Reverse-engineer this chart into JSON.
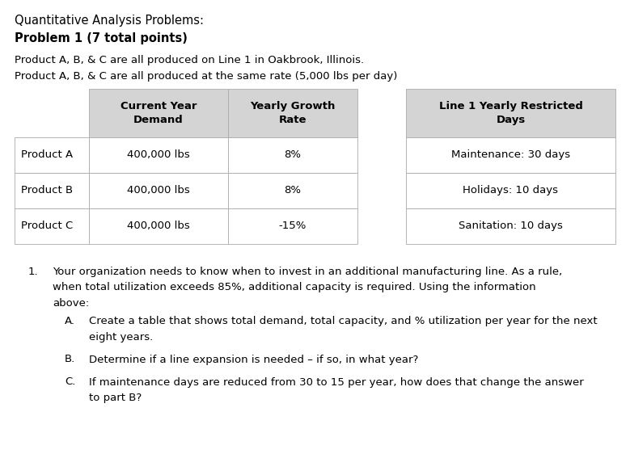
{
  "title_line1": "Quantitative Analysis Problems:",
  "title_line2": "Problem 1 (7 total points)",
  "intro_line1": "Product A, B, & C are all produced on Line 1 in Oakbrook, Illinois.",
  "intro_line2": "Product A, B, & C are all produced at the same rate (5,000 lbs per day)",
  "table_rows": [
    [
      "Product A",
      "400,000 lbs",
      "8%",
      "Maintenance: 30 days"
    ],
    [
      "Product B",
      "400,000 lbs",
      "8%",
      "Holidays: 10 days"
    ],
    [
      "Product C",
      "400,000 lbs",
      "-15%",
      "Sanitation: 10 days"
    ]
  ],
  "header_bg": "#d4d4d4",
  "bg_color": "#ffffff",
  "font_size_title": 10.5,
  "font_size_body": 9.5,
  "font_size_table": 9.5,
  "q1_text_line1": "Your organization needs to know when to invest in an additional manufacturing line. As a rule,",
  "q1_text_line2": "when total utilization exceeds 85%, additional capacity is required. Using the information",
  "q1_text_line3": "above:",
  "qA_line1": "Create a table that shows total demand, total capacity, and % utilization per year for the next",
  "qA_line2": "eight years.",
  "qB_text": "Determine if a line expansion is needed – if so, in what year?",
  "qC_line1": "If maintenance days are reduced from 30 to 15 per year, how does that change the answer",
  "qC_line2": "to part B?"
}
